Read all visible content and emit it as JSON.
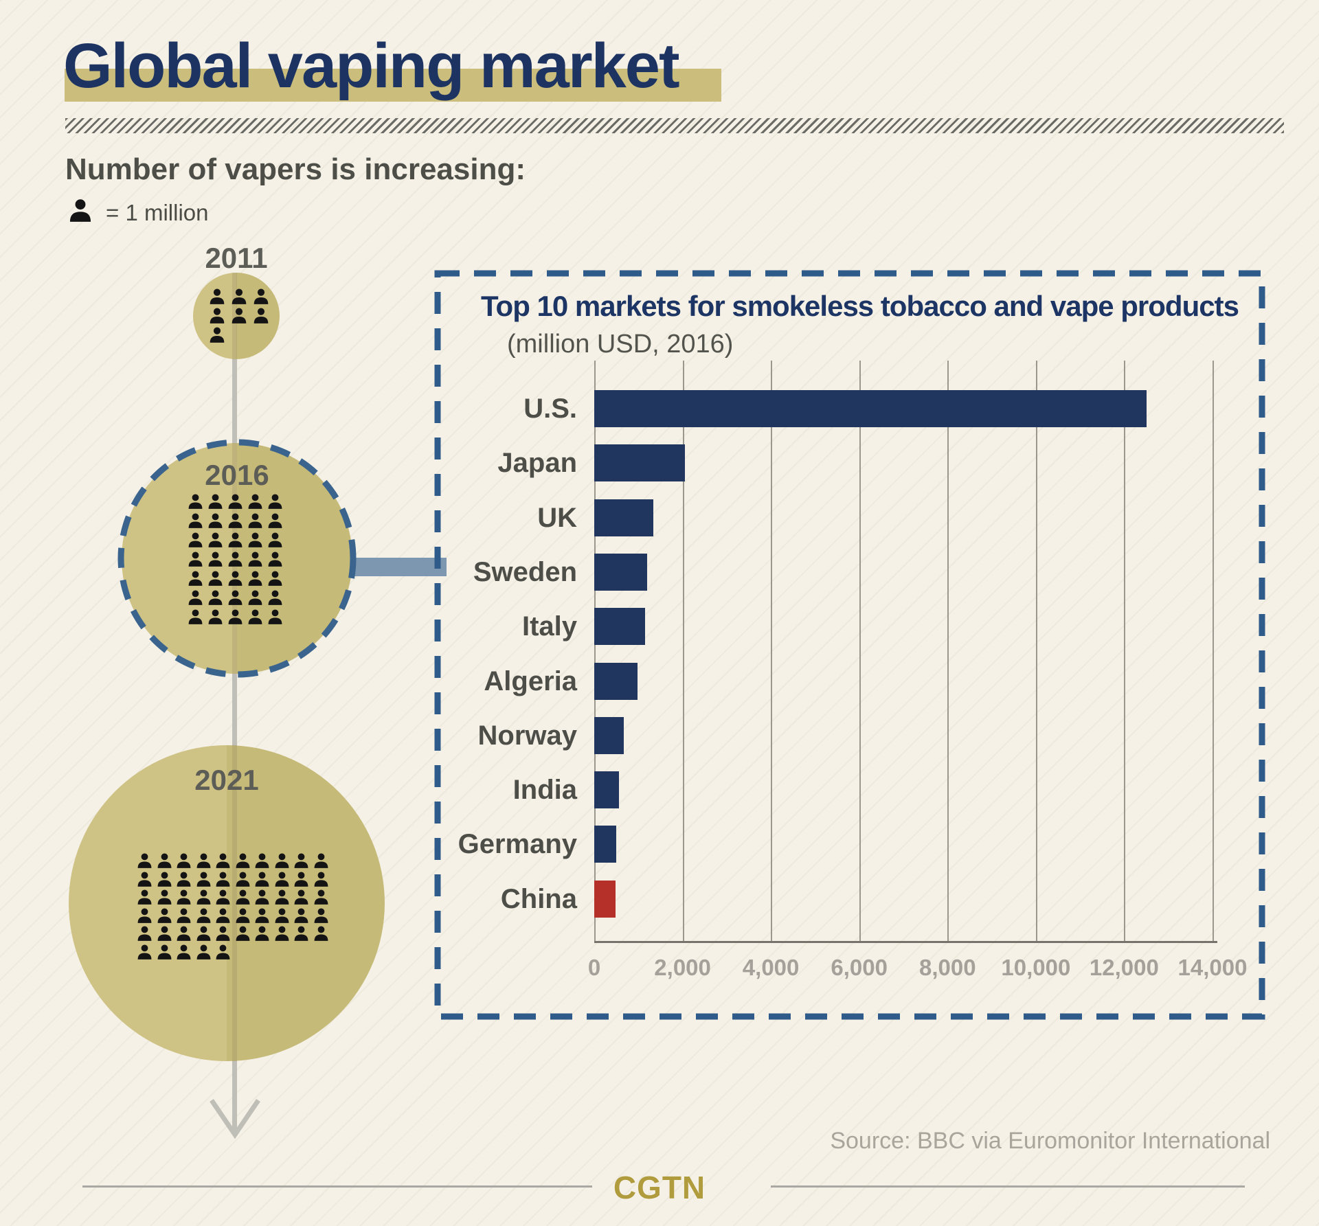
{
  "page": {
    "title": "Global vaping market",
    "source": "Source: BBC via Euromonitor International",
    "brand": "CGTN"
  },
  "colors": {
    "navy": "#1d3463",
    "tan": "#cbbd7b",
    "bar_navy": "#21365f",
    "bar_red": "#b43029",
    "dash_blue": "#2e5b89",
    "connector_blue": "#7d97b0",
    "gold": "#b09b3d"
  },
  "chart_data": [
    {
      "type": "pictogram",
      "title": "Number of vapers is increasing:",
      "legend": "= 1 million",
      "icon": "person-icon",
      "unit_per_icon_millions": 1,
      "series": [
        {
          "year": "2011",
          "vapers_millions": 7,
          "icon_rows": [
            3,
            3,
            1
          ]
        },
        {
          "year": "2016",
          "vapers_millions": 35,
          "icon_rows": [
            5,
            5,
            5,
            5,
            5,
            5,
            5
          ]
        },
        {
          "year": "2021",
          "vapers_millions": 55,
          "icon_rows": [
            10,
            10,
            10,
            10,
            10,
            5
          ]
        }
      ]
    },
    {
      "type": "bar",
      "orientation": "horizontal",
      "title": "Top 10 markets for smokeless tobacco and vape products",
      "subtitle": "(million USD, 2016)",
      "categories": [
        "U.S.",
        "Japan",
        "UK",
        "Sweden",
        "Italy",
        "Algeria",
        "Norway",
        "India",
        "Germany",
        "China"
      ],
      "values": [
        12500,
        2050,
        1340,
        1200,
        1150,
        980,
        670,
        560,
        490,
        480
      ],
      "highlight_index": 9,
      "xlim": [
        0,
        14000
      ],
      "x_ticks": [
        {
          "value": 0,
          "label": "0"
        },
        {
          "value": 2000,
          "label": "2,000"
        },
        {
          "value": 4000,
          "label": "4,000"
        },
        {
          "value": 6000,
          "label": "6,000"
        },
        {
          "value": 8000,
          "label": "8,000"
        },
        {
          "value": 10000,
          "label": "10,000"
        },
        {
          "value": 12000,
          "label": "12,000"
        },
        {
          "value": 14000,
          "label": "14,000"
        }
      ],
      "grid": true,
      "legend_position": "none"
    }
  ]
}
